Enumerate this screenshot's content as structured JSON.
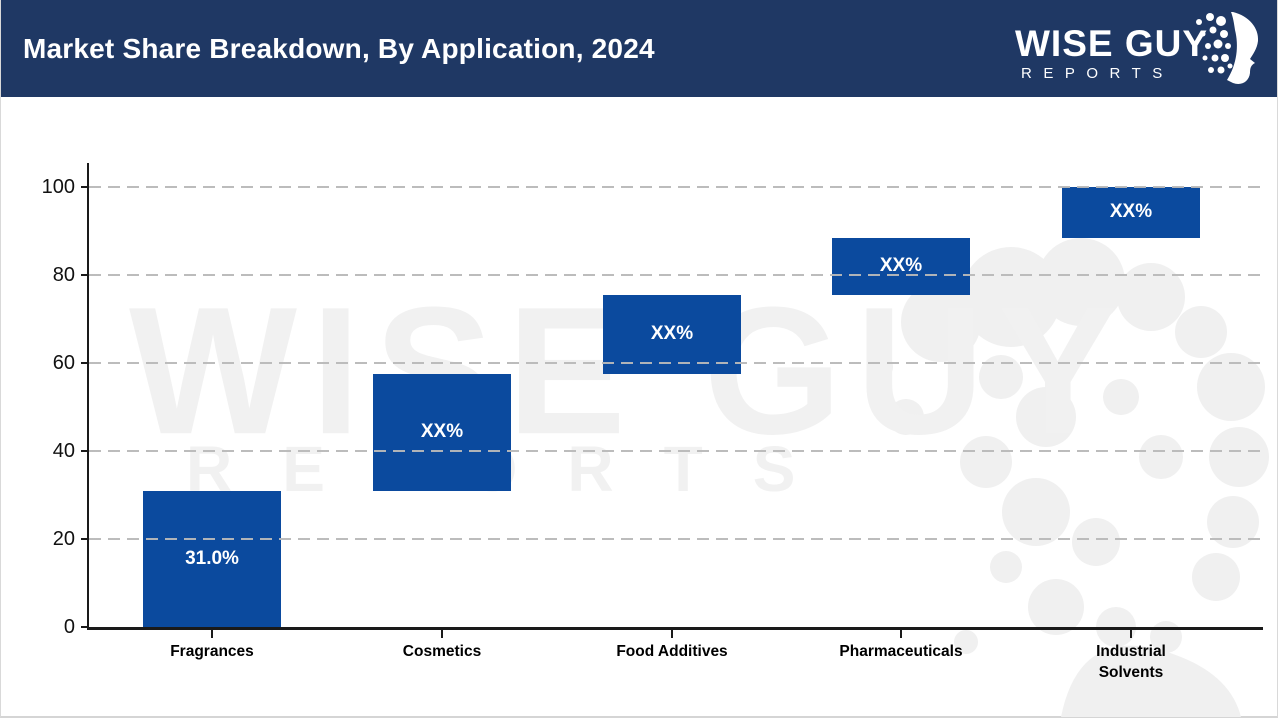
{
  "header": {
    "title": "Market Share Breakdown, By Application, 2024",
    "logo": {
      "line1": "WISE GUY",
      "line2": "REPORTS",
      "icon": "wiseguy-face-icon"
    }
  },
  "watermark": {
    "line1": "WISE GUY",
    "line2": "REPORTS"
  },
  "chart_data": {
    "type": "bar",
    "subtype": "waterfall",
    "title": "Market Share Breakdown, By Application, 2024",
    "categories": [
      "Fragrances",
      "Cosmetics",
      "Food Additives",
      "Pharmaceuticals",
      "Industrial Solvents"
    ],
    "series": [
      {
        "name": "Market Share %",
        "segments": [
          {
            "category": "Fragrances",
            "start": 0,
            "end": 31.0,
            "label": "31.0%"
          },
          {
            "category": "Cosmetics",
            "start": 31.0,
            "end": 57.5,
            "label": "XX%"
          },
          {
            "category": "Food Additives",
            "start": 57.5,
            "end": 75.5,
            "label": "XX%"
          },
          {
            "category": "Pharmaceuticals",
            "start": 75.5,
            "end": 88.5,
            "label": "XX%"
          },
          {
            "category": "Industrial Solvents",
            "start": 88.5,
            "end": 100.0,
            "label": "XX%"
          }
        ]
      }
    ],
    "xlabel": "",
    "ylabel": "",
    "ylim": [
      0,
      105
    ],
    "yticks": [
      0,
      20,
      40,
      60,
      80,
      100
    ],
    "grid": "dashed-horizontal",
    "legend": "none",
    "bar_color": "#0b4a9e",
    "bar_label_color": "#ffffff"
  },
  "colors": {
    "header_bg": "#1f3864",
    "bar": "#0b4a9e",
    "gridline": "#bcbcbc",
    "axis": "#1a1a1a",
    "watermark": "#f1f1f1",
    "frame_border": "#d5d5d5"
  }
}
